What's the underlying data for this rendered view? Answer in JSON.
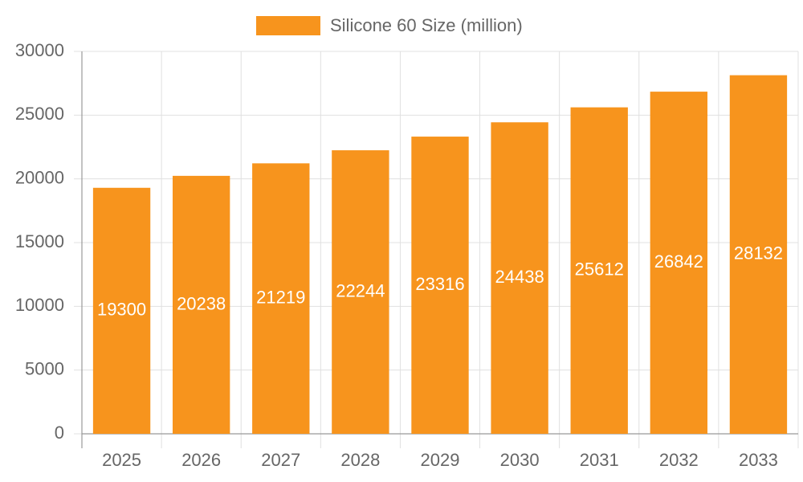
{
  "chart_data": {
    "type": "bar",
    "legend": "Silicone 60 Size (million)",
    "categories": [
      "2025",
      "2026",
      "2027",
      "2028",
      "2029",
      "2030",
      "2031",
      "2032",
      "2033"
    ],
    "values": [
      19300,
      20238,
      21219,
      22244,
      23316,
      24438,
      25612,
      26842,
      28132
    ],
    "color": "#f7941d",
    "ylim": [
      0,
      30000
    ],
    "yticks": [
      0,
      5000,
      10000,
      15000,
      20000,
      25000,
      30000
    ],
    "grid": true
  }
}
